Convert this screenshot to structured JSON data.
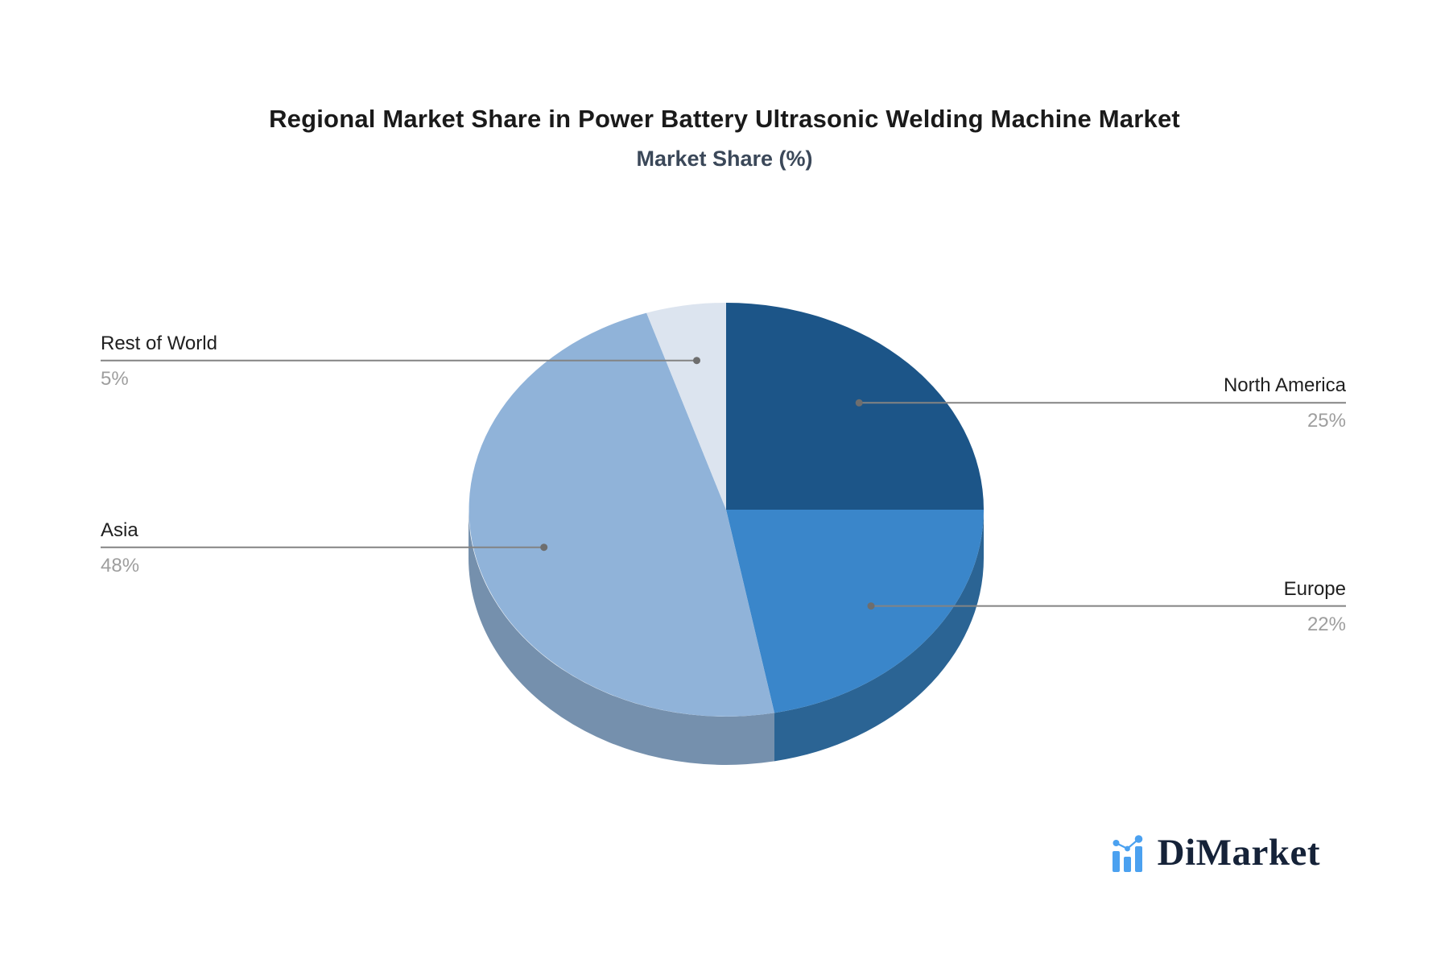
{
  "header": {
    "title": "Regional Market Share in Power Battery Ultrasonic Welding Machine Market",
    "subtitle": "Market Share (%)"
  },
  "chart_data": {
    "type": "pie",
    "title": "Regional Market Share in Power Battery Ultrasonic Welding Machine Market",
    "subtitle": "Market Share (%)",
    "unit": "%",
    "start_angle": "12-oclock",
    "direction": "clockwise",
    "effect": "3d-depth",
    "slices": [
      {
        "label": "North America",
        "value": 25,
        "display": "25%",
        "color": "#1C5588",
        "side_color": "#174A78",
        "label_side": "right"
      },
      {
        "label": "Europe",
        "value": 22,
        "display": "22%",
        "color": "#3A86CA",
        "side_color": "#2B6494",
        "label_side": "right"
      },
      {
        "label": "Asia",
        "value": 48,
        "display": "48%",
        "color": "#90B3D9",
        "side_color": "#7590AD",
        "label_side": "left"
      },
      {
        "label": "Rest of World",
        "value": 5,
        "display": "5%",
        "color": "#DCE4EF",
        "side_color": "#B9C3D2",
        "label_side": "left"
      }
    ],
    "leader_line_color": "#838383",
    "leader_dot_color": "#6E6E6E",
    "label_color": "#1F1F1F",
    "percent_color": "#9E9E9E",
    "legend_position": "callout-labels",
    "grid": false
  },
  "branding": {
    "name": "DiMarket",
    "icon": "bar-chart-logo-icon",
    "icon_color": "#4BA1F0",
    "text_color": "#152238"
  }
}
